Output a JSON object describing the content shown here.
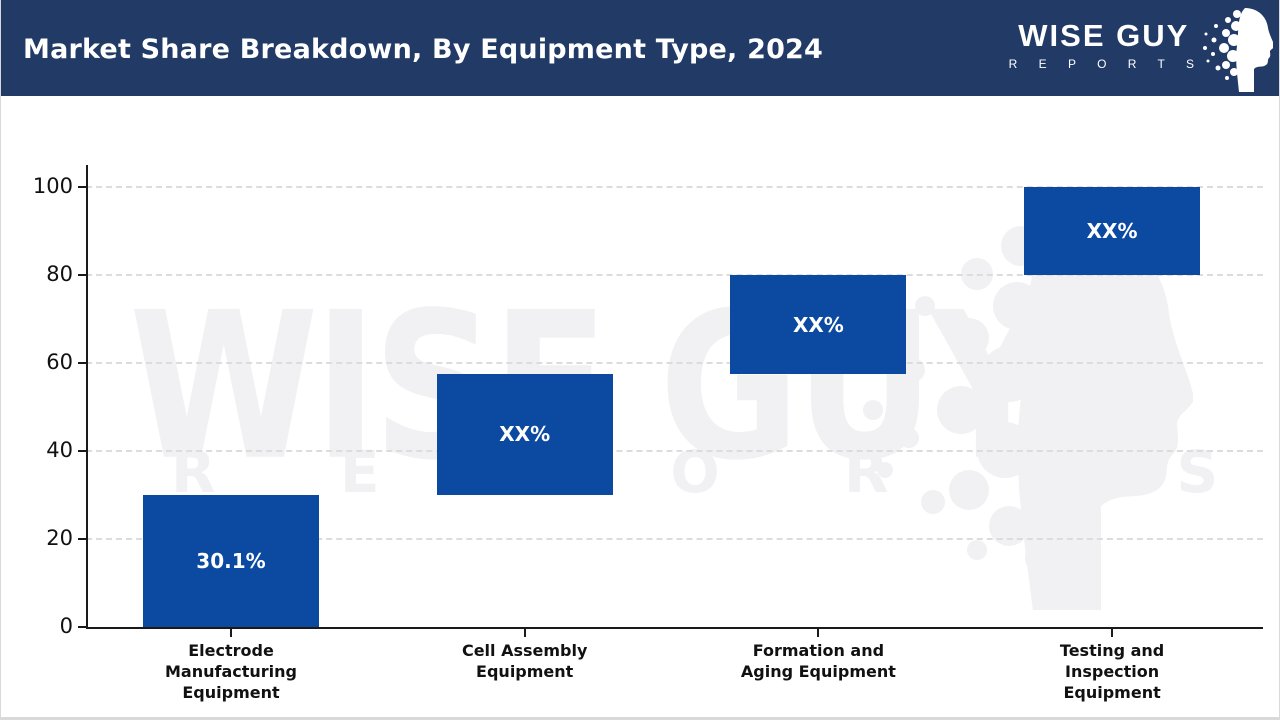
{
  "header": {
    "title": "Market Share Breakdown, By Equipment Type, 2024",
    "logo": {
      "primary": "WISE GUY",
      "secondary": "R E P O R T S",
      "face_icon": "dotted-head-profile"
    },
    "bg_color": "#213A66"
  },
  "watermark": {
    "primary": "WISE GUY",
    "secondary": "R E P O R T S",
    "face_icon": "dotted-head-profile",
    "color": "#f1f1f3"
  },
  "colors": {
    "bar": "#0C4AA2",
    "bar_label": "#ffffff",
    "grid": "#dcdcdc",
    "axis": "#1a1a1a",
    "header_bg": "#213A66"
  },
  "chart_data": {
    "type": "bar",
    "subtype": "waterfall",
    "title": "Market Share Breakdown, By Equipment Type, 2024",
    "xlabel": "",
    "ylabel": "",
    "ylim": [
      0,
      105
    ],
    "yticks": [
      0,
      20,
      40,
      60,
      80,
      100
    ],
    "grid": "horizontal-dashed",
    "legend": "none",
    "categories": [
      "Electrode Manufacturing Equipment",
      "Cell Assembly Equipment",
      "Formation and Aging Equipment",
      "Testing and Inspection Equipment"
    ],
    "category_lines": [
      [
        "Electrode",
        "Manufacturing",
        "Equipment"
      ],
      [
        "Cell Assembly",
        "Equipment"
      ],
      [
        "Formation and",
        "Aging Equipment"
      ],
      [
        "Testing and",
        "Inspection",
        "Equipment"
      ]
    ],
    "segments": [
      {
        "category": "Electrode Manufacturing Equipment",
        "start": 0,
        "end": 30.1,
        "label": "30.1%"
      },
      {
        "category": "Cell Assembly Equipment",
        "start": 30.1,
        "end": 57.5,
        "label": "XX%"
      },
      {
        "category": "Formation and Aging Equipment",
        "start": 57.5,
        "end": 80,
        "label": "XX%"
      },
      {
        "category": "Testing and Inspection Equipment",
        "start": 80,
        "end": 100,
        "label": "XX%"
      }
    ]
  }
}
